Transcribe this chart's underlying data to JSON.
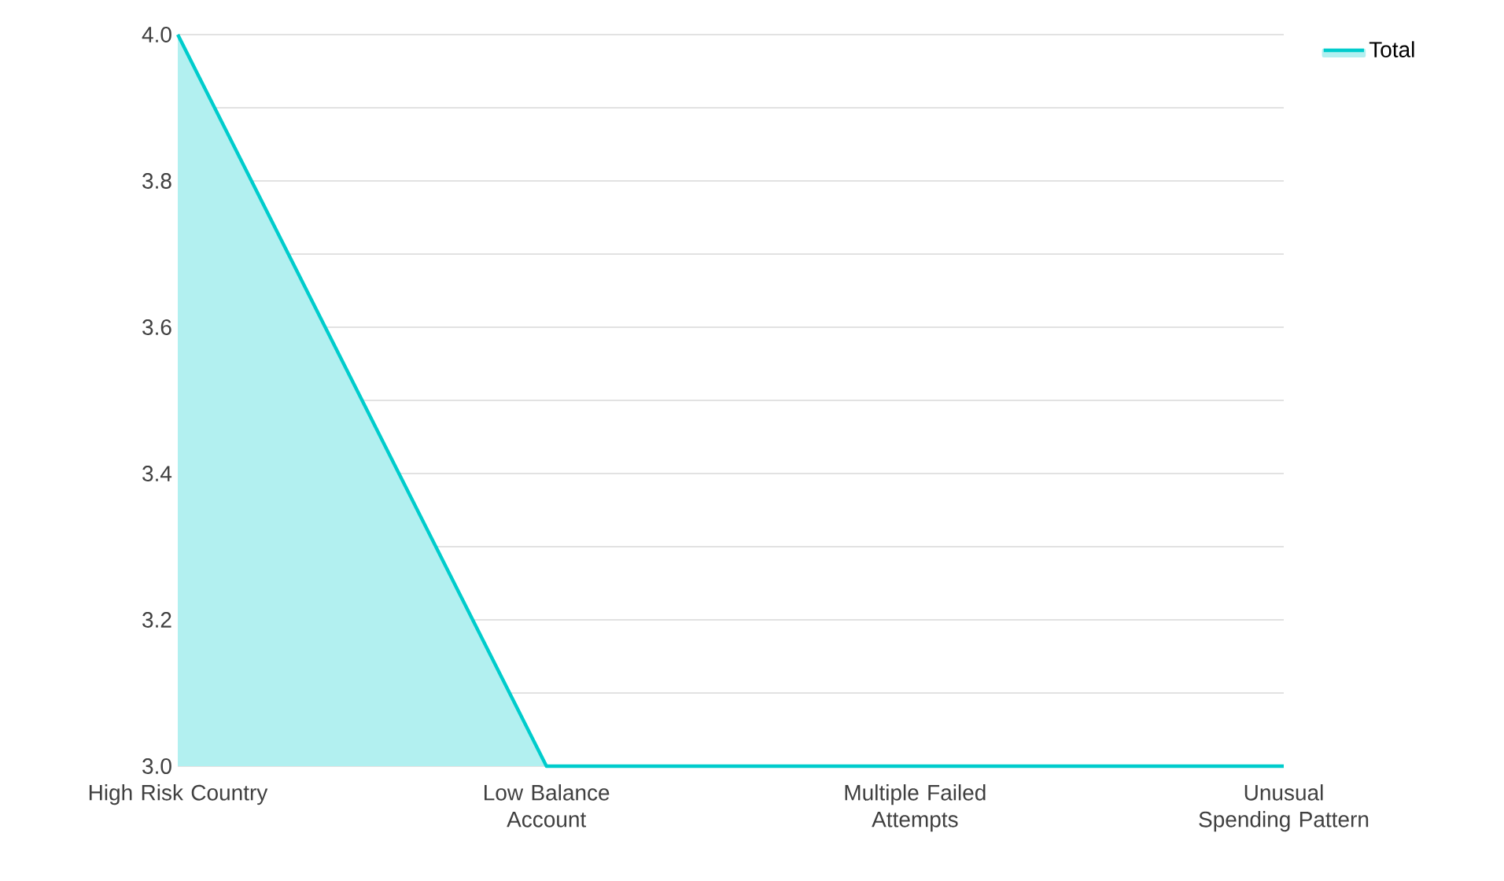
{
  "chart_data": {
    "type": "area",
    "categories": [
      "High Risk Country",
      "Low Balance Account",
      "Multiple Failed Attempts",
      "Unusual Spending Pattern"
    ],
    "series": [
      {
        "name": "Total",
        "color": "#00cccc",
        "values": [
          4,
          3,
          3,
          3
        ]
      }
    ],
    "ylim": [
      3,
      4
    ],
    "yticks": [
      {
        "value": 3.0,
        "label": "3.0"
      },
      {
        "value": 3.1,
        "label": null
      },
      {
        "value": 3.2,
        "label": "3.2"
      },
      {
        "value": 3.3,
        "label": null
      },
      {
        "value": 3.4,
        "label": "3.4"
      },
      {
        "value": 3.5,
        "label": null
      },
      {
        "value": 3.6,
        "label": "3.6"
      },
      {
        "value": 3.7,
        "label": null
      },
      {
        "value": 3.8,
        "label": "3.8"
      },
      {
        "value": 3.9,
        "label": null
      },
      {
        "value": 4.0,
        "label": "4.0"
      }
    ],
    "grid": "y",
    "legend": "top right"
  }
}
